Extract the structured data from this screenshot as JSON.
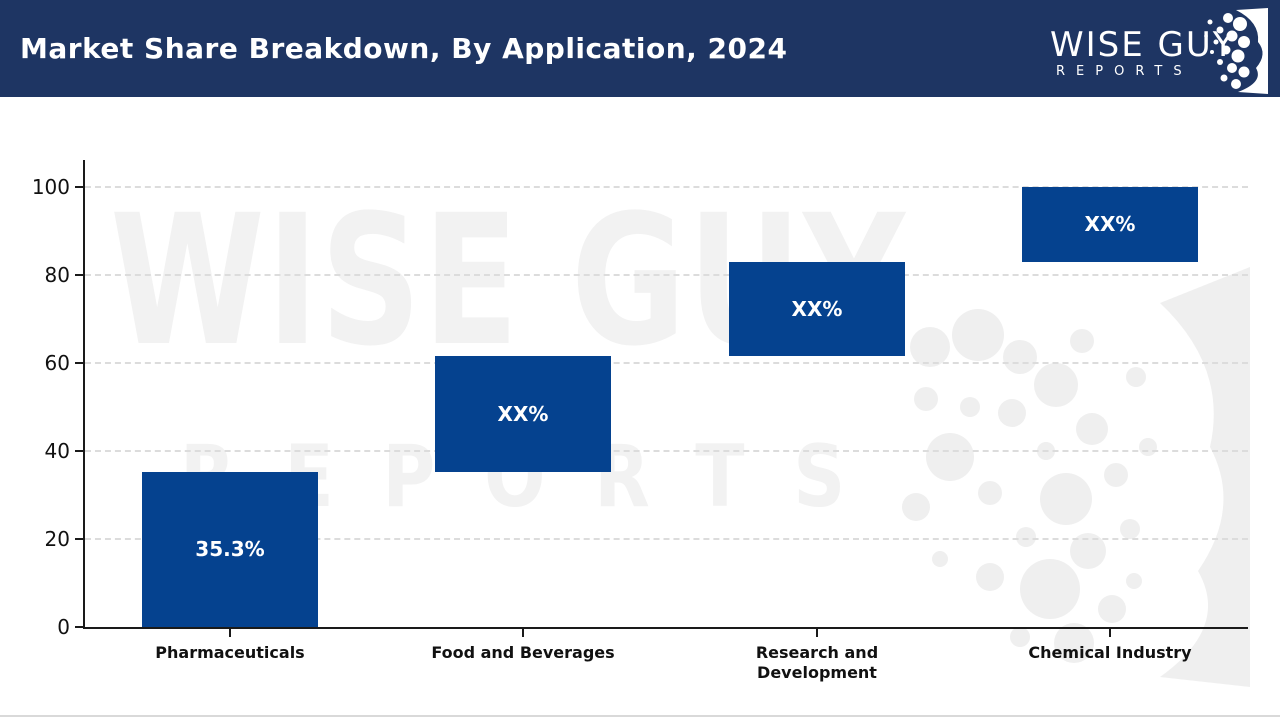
{
  "header": {
    "title": "Market Share Breakdown, By Application, 2024",
    "logo": {
      "line1": "WISE GUY",
      "line2": "REPORTS"
    }
  },
  "watermark": {
    "line1": "WISE GUY",
    "line2": "REPORTS"
  },
  "chart_data": {
    "type": "bar",
    "subtype": "waterfall",
    "title": "Market Share Breakdown, By Application, 2024",
    "categories": [
      "Pharmaceuticals",
      "Food and Beverages",
      "Research and\nDevelopment",
      "Chemical Industry"
    ],
    "segments": [
      {
        "category": "Pharmaceuticals",
        "start": 0,
        "end": 35.3,
        "label": "35.3%"
      },
      {
        "category": "Food and Beverages",
        "start": 35.3,
        "end": 61.5,
        "label": "XX%"
      },
      {
        "category": "Research and Development",
        "start": 61.5,
        "end": 83,
        "label": "XX%"
      },
      {
        "category": "Chemical Industry",
        "start": 83,
        "end": 100,
        "label": "XX%"
      }
    ],
    "xlabel": "",
    "ylabel": "",
    "ylim": [
      0,
      100
    ],
    "yticks": [
      0,
      20,
      40,
      60,
      80,
      100
    ],
    "grid": true,
    "legend": false,
    "bar_color": "#05428f",
    "bar_label_color": "#ffffff"
  },
  "colors": {
    "header_bg": "#1e3563",
    "bar": "#05428f",
    "grid": "#dcdcdc",
    "axis": "#1a1a1a",
    "watermark": "#f2f2f2",
    "bottom_rule": "#d9d9d9"
  }
}
